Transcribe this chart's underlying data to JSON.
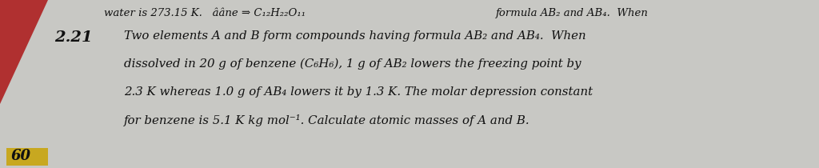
{
  "page_background": "#c8c8c4",
  "text_color": "#111111",
  "number_color": "#111111",
  "page_num_color": "#111111",
  "top_line": "    water is 273.15 K.   ââne ↝ C₁₂H₂₂O₁₁",
  "number_label": "2.21",
  "main_text_lines": [
    "Two elements A and B form compounds having formula AB₂ and AB₄.  When",
    "dissolved in 20 g of benzene (C₆H₆), 1 g of AB₂ lowers the freezing point by",
    "2.3 K whereas 1.0 g of AB₄ lowers it by 1.3 K. The molar depression constant",
    "for benzene is 5.1 K kg mol⁻¹. Calculate atomic masses of A and B."
  ],
  "page_number": "60",
  "font_size_top": 9.5,
  "font_size_main": 10.8,
  "font_size_number": 14,
  "font_size_page": 13,
  "red_stripe_color": "#b03030",
  "yellow_highlight": "#c8a820"
}
